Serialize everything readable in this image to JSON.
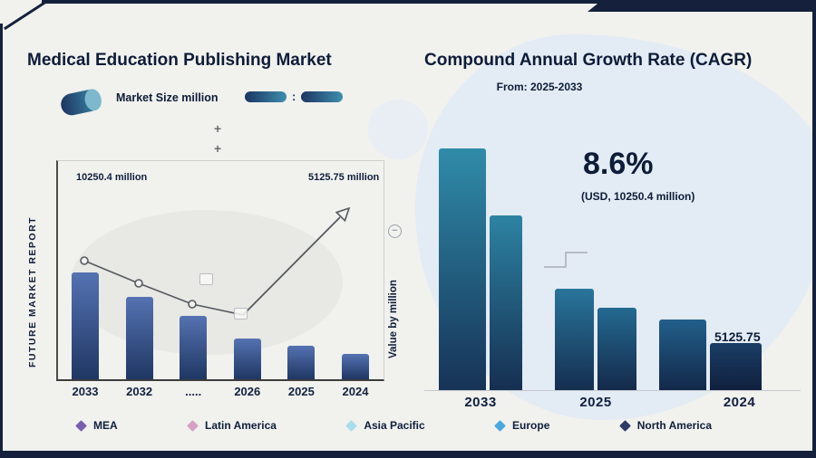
{
  "colors": {
    "background": "#f1f1ee",
    "frame_navy": "#15213c",
    "title_text": "#0d1c38",
    "left_bar_top": "#5572b2",
    "left_bar_bottom": "#1f3763",
    "right_bar_teal": "#2f8ba9",
    "right_bar_navy": "#13284a",
    "blob": "#e3ebf4"
  },
  "header": {
    "title": "Medical Education Publishing Market",
    "market_size_label": "Market Size million"
  },
  "decor": {
    "plus": "+",
    "minus": "−",
    "colon": ":"
  },
  "left_chart_labels": {
    "annotation_left": "10250.4 million",
    "annotation_right": "5125.75 million",
    "side_label": "FUTURE MARKET REPORT"
  },
  "cagr": {
    "title": "Compound Annual Growth Rate (CAGR)",
    "subtitle": "From: 2025-2033",
    "value": "8.6%",
    "value_note": "(USD, 10250.4 million)",
    "end_value_label": "5125.75",
    "side_label": "Value by million"
  },
  "legend": {
    "items": [
      {
        "label": "MEA",
        "color": "#7a5fae"
      },
      {
        "label": "Latin America",
        "color": "#d79fc4"
      },
      {
        "label": "Asia Pacific",
        "color": "#a9dcec"
      },
      {
        "label": "Europe",
        "color": "#4aa8dd"
      },
      {
        "label": "North America",
        "color": "#2b3a66"
      }
    ]
  },
  "chart_data": [
    {
      "type": "bar",
      "title": "Medical Education Publishing Market",
      "ylabel": "FUTURE MARKET REPORT",
      "unit": "USD million",
      "categories": [
        "2033",
        "2032",
        ".....",
        "2026",
        "2025",
        "2024"
      ],
      "values": [
        10250.4,
        8700,
        7500,
        6100,
        5600,
        5125.75
      ],
      "ylim": [
        0,
        10250.4
      ],
      "grid": false,
      "annotations": [
        "10250.4 million",
        "5125.75 million"
      ],
      "trend": {
        "type": "line-with-arrow",
        "note": "circle markers descend from 2033 toward 2026, then an outlined arrow rises to the top right"
      }
    },
    {
      "type": "bar",
      "title": "Compound Annual Growth Rate (CAGR)",
      "subtitle": "From: 2025-2033",
      "ylabel": "Value by million",
      "unit": "USD million",
      "categories": [
        "2033",
        "2025",
        "2024"
      ],
      "series": [
        {
          "name": "upper",
          "values": [
            10250.4,
            6550,
            5750
          ]
        },
        {
          "name": "lower",
          "values": [
            8500,
            6050,
            5125.75
          ]
        }
      ],
      "ylim": [
        0,
        10250.4
      ],
      "grid": false,
      "annotations": [
        "8.6%",
        "(USD, 10250.4 million)",
        "5125.75"
      ]
    }
  ]
}
